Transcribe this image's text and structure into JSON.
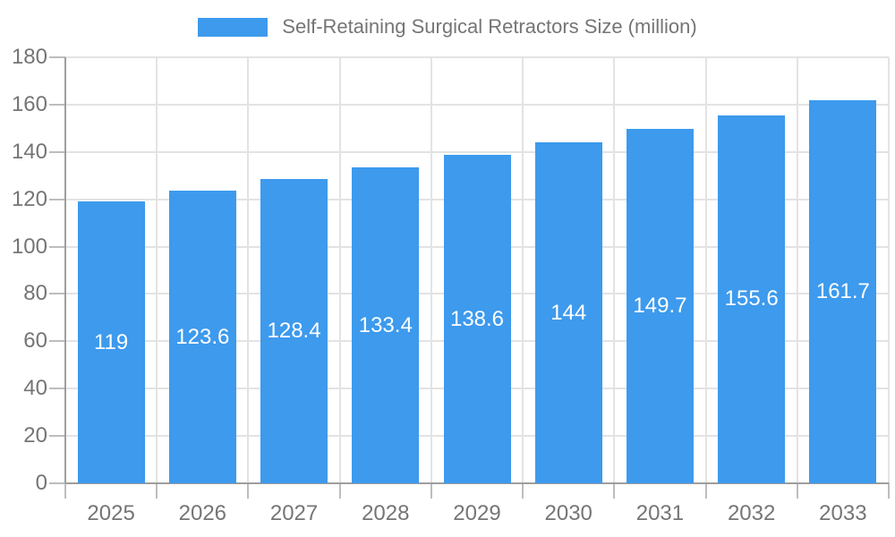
{
  "legend": {
    "items": [
      {
        "label": "Self-Retaining Surgical Retractors Size (million)",
        "color": "#3d9aed"
      }
    ]
  },
  "chart_data": {
    "type": "bar",
    "title": "Self-Retaining Surgical Retractors Size (million)",
    "categories": [
      "2025",
      "2026",
      "2027",
      "2028",
      "2029",
      "2030",
      "2031",
      "2032",
      "2033"
    ],
    "values": [
      119,
      123.6,
      128.4,
      133.4,
      138.6,
      144,
      149.7,
      155.6,
      161.7
    ],
    "value_labels": [
      "119",
      "123.6",
      "128.4",
      "133.4",
      "138.6",
      "144",
      "149.7",
      "155.6",
      "161.7"
    ],
    "series_name": "Self-Retaining Surgical Retractors Size (million)",
    "xlabel": "",
    "ylabel": "",
    "ylim": [
      0,
      180
    ],
    "yticks": [
      0,
      20,
      40,
      60,
      80,
      100,
      120,
      140,
      160,
      180
    ],
    "grid": true,
    "legend_position": "top-center",
    "bar_color": "#3d9aed",
    "value_label_position": "inside-middle"
  },
  "colors": {
    "background": "#ffffff",
    "bar": "#3d9aed",
    "bar_label": "#ffffff",
    "grid_line": "#e3e3e3",
    "tick_line": "#bdbdbd",
    "axis_line": "#9e9e9e",
    "axis_text": "#757575",
    "legend_text": "#757575"
  }
}
